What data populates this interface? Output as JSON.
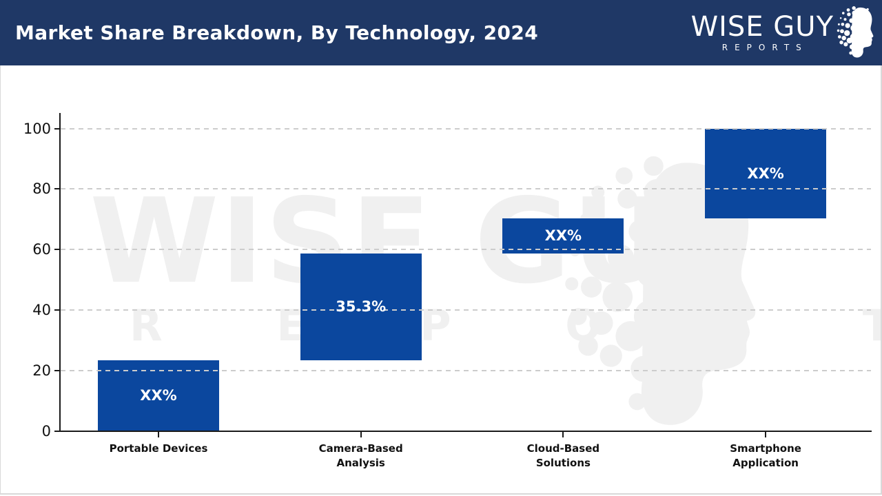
{
  "header": {
    "title": "Market Share Breakdown, By Technology, 2024",
    "logo": {
      "brand": "WISE GUY",
      "sub": "REPORTS",
      "icon": "dotted-head-profile-icon"
    }
  },
  "watermark": {
    "brand": "WISE GUY",
    "sub": "R E P O R T S",
    "icon": "dotted-head-profile-icon"
  },
  "colors": {
    "header_bg": "#1f3866",
    "bar": "#0b479e",
    "bar_label": "#ffffff",
    "axis": "#1a1a1a",
    "grid": "#cccccc",
    "tick_text": "#111111",
    "title_text": "#ffffff",
    "watermark": "#f0f0f0"
  },
  "chart_data": {
    "type": "bar",
    "subtype": "waterfall",
    "title": "Market Share Breakdown, By Technology, 2024",
    "categories": [
      "Portable Devices",
      "Camera-Based\nAnalysis",
      "Cloud-Based\nSolutions",
      "Smartphone\nApplication"
    ],
    "bars": [
      {
        "category": "Portable Devices",
        "label": "XX%",
        "start": 0,
        "end": 23.5
      },
      {
        "category": "Camera-Based Analysis",
        "label": "35.3%",
        "start": 23.5,
        "end": 58.8
      },
      {
        "category": "Cloud-Based Solutions",
        "label": "XX%",
        "start": 58.8,
        "end": 70.4
      },
      {
        "category": "Smartphone Application",
        "label": "XX%",
        "start": 70.4,
        "end": 100
      }
    ],
    "xlabel": "",
    "ylabel": "",
    "yticks": [
      0,
      20,
      40,
      60,
      80,
      100
    ],
    "ylim": [
      0,
      105
    ],
    "grid": "horizontal dashed, drawn above bars",
    "legend": "none"
  }
}
